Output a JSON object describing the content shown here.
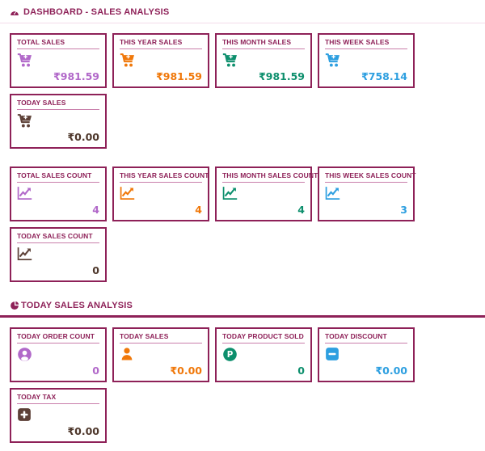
{
  "colors": {
    "primary": "#8e2158",
    "card_border": "#8e2158",
    "card_rule": "#c97fab",
    "light_divider": "#f3dcea",
    "purple": "#b168c9",
    "orange": "#f0780a",
    "teal": "#0d8f6d",
    "blue": "#2d9fe0",
    "brown": "#5d4037",
    "dark": "#4d362a"
  },
  "sections": [
    {
      "title": "DASHBOARD - SALES ANALYSIS",
      "icon": "dashboard-icon",
      "groups": [
        {
          "cards": [
            {
              "title": "TOTAL SALES",
              "icon": "cart-plus-icon",
              "color": "purple",
              "value": "₹981.59",
              "value_color": "purple"
            },
            {
              "title": "THIS YEAR SALES",
              "icon": "cart-plus-icon",
              "color": "orange",
              "value": "₹981.59",
              "value_color": "orange"
            },
            {
              "title": "THIS MONTH SALES",
              "icon": "cart-plus-icon",
              "color": "teal",
              "value": "₹981.59",
              "value_color": "teal"
            },
            {
              "title": "THIS WEEK SALES",
              "icon": "cart-plus-icon",
              "color": "blue",
              "value": "₹758.14",
              "value_color": "blue"
            },
            {
              "title": "TODAY SALES",
              "icon": "cart-plus-icon",
              "color": "brown",
              "value": "₹0.00",
              "value_color": "dark"
            }
          ]
        },
        {
          "cards": [
            {
              "title": "TOTAL SALES COUNT",
              "icon": "chart-line-icon",
              "color": "purple",
              "value": "4",
              "value_color": "purple"
            },
            {
              "title": "THIS YEAR SALES COUNT",
              "icon": "chart-line-icon",
              "color": "orange",
              "value": "4",
              "value_color": "orange"
            },
            {
              "title": "THIS MONTH SALES COUNT",
              "icon": "chart-line-icon",
              "color": "teal",
              "value": "4",
              "value_color": "teal"
            },
            {
              "title": "THIS WEEK SALES COUNT",
              "icon": "chart-line-icon",
              "color": "blue",
              "value": "3",
              "value_color": "blue"
            },
            {
              "title": "TODAY SALES COUNT",
              "icon": "chart-line-icon",
              "color": "brown",
              "value": "0",
              "value_color": "dark"
            }
          ]
        }
      ]
    },
    {
      "title": "TODAY SALES ANALYSIS",
      "icon": "pie-chart-icon",
      "groups": [
        {
          "cards": [
            {
              "title": "TODAY ORDER COUNT",
              "icon": "user-circle-icon",
              "color": "purple",
              "value": "0",
              "value_color": "purple"
            },
            {
              "title": "TODAY SALES",
              "icon": "user-icon",
              "color": "orange",
              "value": "₹0.00",
              "value_color": "orange"
            },
            {
              "title": "TODAY PRODUCT SOLD",
              "icon": "product-circle-icon",
              "color": "teal",
              "value": "0",
              "value_color": "teal"
            },
            {
              "title": "TODAY DISCOUNT",
              "icon": "minus-square-icon",
              "color": "blue",
              "value": "₹0.00",
              "value_color": "blue"
            },
            {
              "title": "TODAY TAX",
              "icon": "plus-square-icon",
              "color": "brown",
              "value": "₹0.00",
              "value_color": "dark"
            }
          ]
        }
      ]
    }
  ]
}
